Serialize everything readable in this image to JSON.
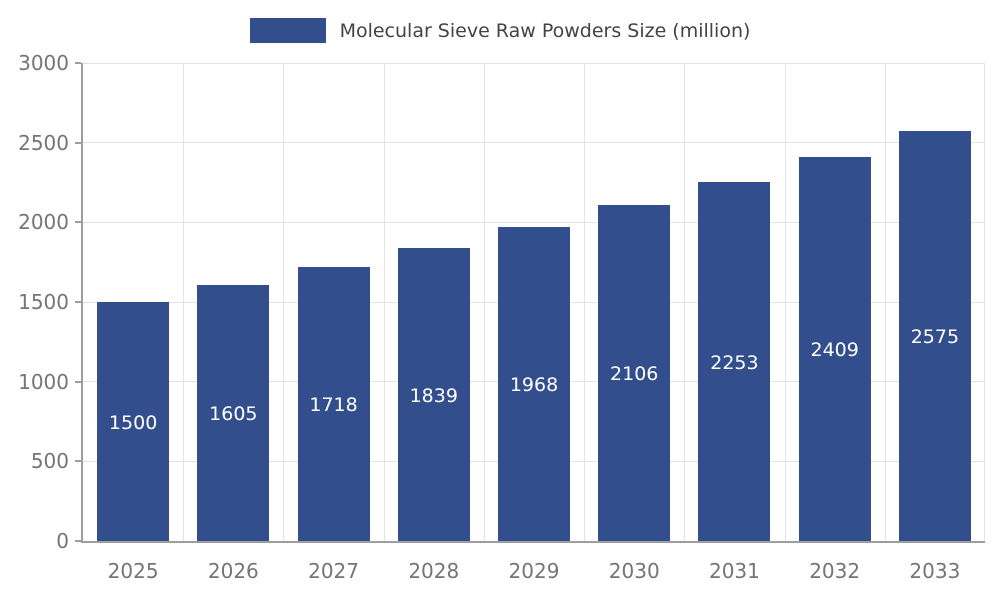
{
  "chart_data": {
    "type": "bar",
    "title": "",
    "legend": {
      "label": "Molecular Sieve Raw Powders Size (million)",
      "position": "top"
    },
    "categories": [
      "2025",
      "2026",
      "2027",
      "2028",
      "2029",
      "2030",
      "2031",
      "2032",
      "2033"
    ],
    "values": [
      1500,
      1605,
      1718,
      1839,
      1968,
      2106,
      2253,
      2409,
      2575
    ],
    "xlabel": "",
    "ylabel": "",
    "ylim": [
      0,
      3000
    ],
    "yticks": [
      0,
      500,
      1000,
      1500,
      2000,
      2500,
      3000
    ],
    "grid": true,
    "colors": {
      "bar": "#334e8d",
      "bar_label": "#ffffff",
      "axis_text": "#757575",
      "grid_line": "#e3e3e3",
      "axis_line": "#9e9e9e",
      "legend_text": "#434343"
    }
  }
}
